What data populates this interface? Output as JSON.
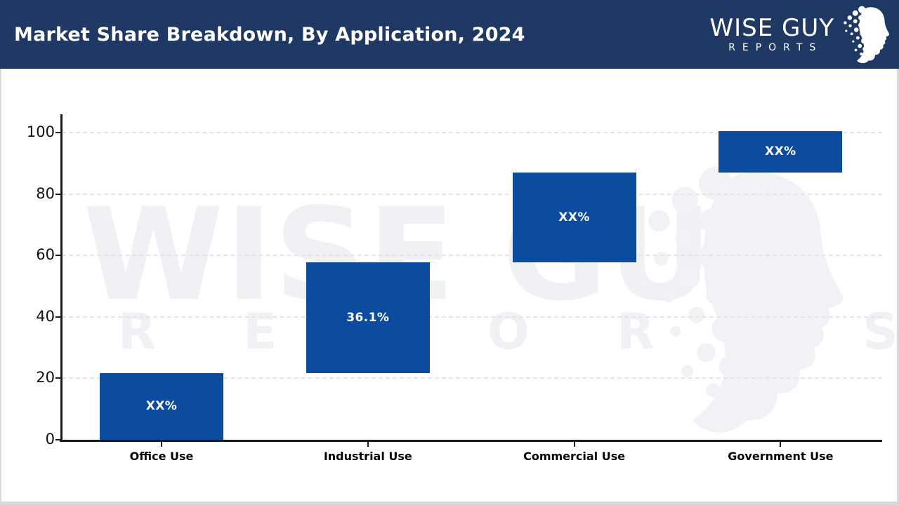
{
  "header": {
    "title": "Market Share Breakdown, By Application, 2024",
    "bg_color": "#203864",
    "logo": {
      "line1": "WISE GUY",
      "line2": "REPORTS"
    }
  },
  "watermark": {
    "line1": "WISE GUY",
    "line2": "R E P O R T S",
    "color": "#f0f1f4"
  },
  "chart_data": {
    "type": "bar",
    "subtype": "floating-waterfall",
    "title": "Market Share Breakdown, By Application, 2024",
    "xlabel": "",
    "ylabel": "",
    "categories": [
      "Office Use",
      "Industrial Use",
      "Commercial Use",
      "Government Use"
    ],
    "segments": [
      {
        "start": 0,
        "end": 21.8,
        "label": "XX%"
      },
      {
        "start": 21.8,
        "end": 57.9,
        "label": "36.1%"
      },
      {
        "start": 57.9,
        "end": 87.0,
        "label": "XX%"
      },
      {
        "start": 87.0,
        "end": 100.6,
        "label": "XX%"
      }
    ],
    "yticks": [
      0,
      20,
      40,
      60,
      80,
      100
    ],
    "ylim": [
      0,
      106
    ],
    "grid": true,
    "gridline_style": "dashed",
    "legend": "none",
    "bar_color": "#0c4b9e",
    "axis_color": "#1a1a1a",
    "grid_color": "#e4e5e8"
  }
}
